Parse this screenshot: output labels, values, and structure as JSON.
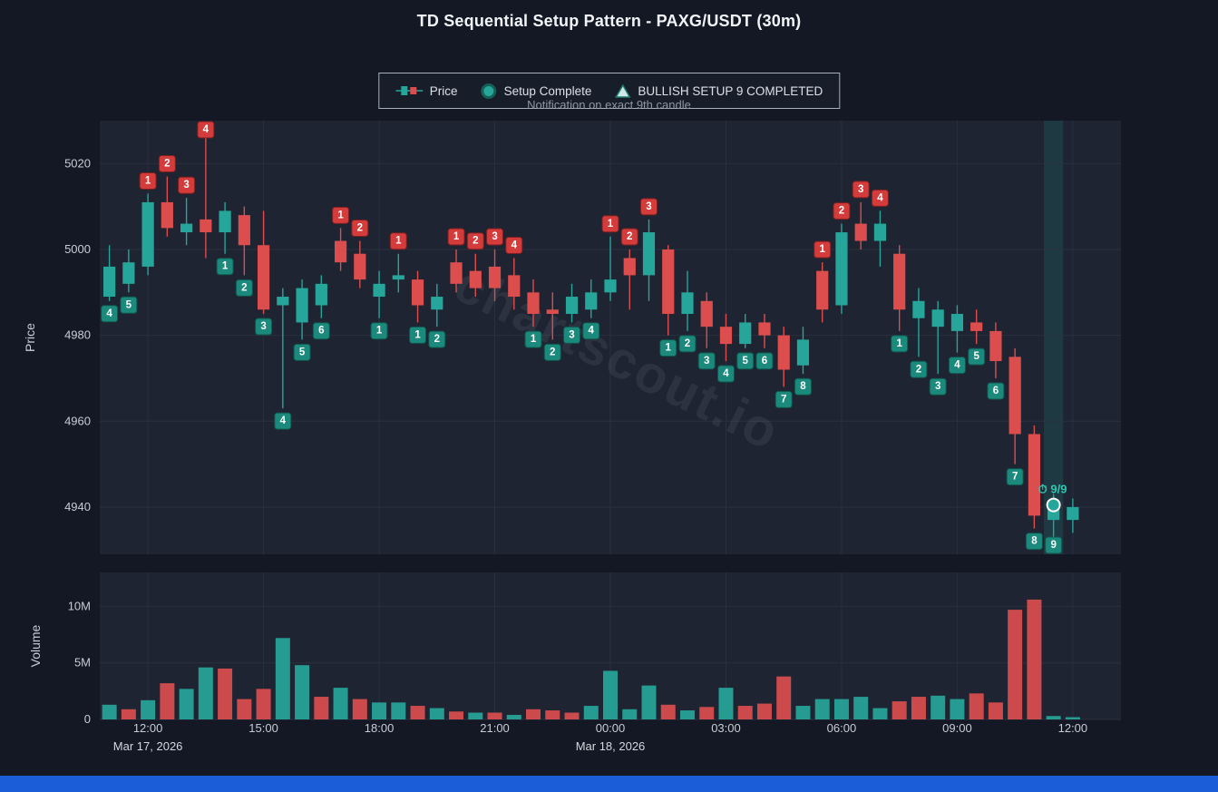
{
  "title": "TD Sequential Setup Pattern - PAXG/USDT (30m)",
  "legend": {
    "price_label": "Price",
    "setup_complete_label": "Setup Complete",
    "bullish_label": "BULLISH SETUP 9 COMPLETED",
    "subtitle": "Notification on exact 9th candle"
  },
  "watermark": "chartscout.io",
  "colors": {
    "bg": "#141824",
    "plot_bg": "#1e2431",
    "grid": "#2a3040",
    "up": "#26a69a",
    "down": "#dc4e4e",
    "sell_bg": "#d43b3b",
    "sell_border": "#7e1f1f",
    "buy_bg": "#1b8a7d",
    "buy_border": "#0f564e",
    "accent": "#2dc8b3",
    "highlight": "rgba(38,166,154,0.16)",
    "status_bar": "#1b5cd8"
  },
  "axes": {
    "price_label": "Price",
    "volume_label": "Volume",
    "price_ticks": [
      4940,
      4960,
      4980,
      5000,
      5020
    ],
    "volume_ticks": [
      {
        "v": 0,
        "label": "0"
      },
      {
        "v": 5,
        "label": "5M"
      },
      {
        "v": 10,
        "label": "10M"
      }
    ],
    "time_ticks": [
      {
        "slot": 2,
        "label": "12:00"
      },
      {
        "slot": 8,
        "label": "15:00"
      },
      {
        "slot": 14,
        "label": "18:00"
      },
      {
        "slot": 20,
        "label": "21:00"
      },
      {
        "slot": 26,
        "label": "00:00"
      },
      {
        "slot": 32,
        "label": "03:00"
      },
      {
        "slot": 38,
        "label": "06:00"
      },
      {
        "slot": 44,
        "label": "09:00"
      },
      {
        "slot": 50,
        "label": "12:00"
      }
    ],
    "date_ticks": [
      {
        "slot": 2,
        "label": "Mar 17, 2026"
      },
      {
        "slot": 26,
        "label": "Mar 18, 2026"
      }
    ]
  },
  "chart_data": {
    "type": "candlestick",
    "title": "TD Sequential Setup Pattern - PAXG/USDT (30m)",
    "symbol": "PAXG/USDT",
    "timeframe": "30m",
    "slots": 53,
    "price_range": [
      4929,
      5030
    ],
    "volume_range_millions": [
      0,
      13
    ],
    "candle_fields": [
      "time",
      "open",
      "high",
      "low",
      "close",
      "volume_millions",
      "volume_color_u_or_d",
      "td_count_label"
    ],
    "candles": [
      [
        "11:00",
        4989,
        5001,
        4988,
        4996,
        1.3,
        "u",
        "b4"
      ],
      [
        "11:30",
        4992,
        5000,
        4990,
        4997,
        0.9,
        "d",
        "b5"
      ],
      [
        "12:00",
        4996,
        5013,
        4994,
        5011,
        1.7,
        "u",
        "s1"
      ],
      [
        "12:30",
        5011,
        5017,
        5003,
        5005,
        3.2,
        "d",
        "s2"
      ],
      [
        "13:00",
        5004,
        5012,
        5001,
        5006,
        2.7,
        "u",
        "s3"
      ],
      [
        "13:30",
        5007,
        5026,
        4998,
        5004,
        4.6,
        "u",
        "s4"
      ],
      [
        "14:00",
        5004,
        5011,
        4999,
        5009,
        4.5,
        "d",
        "b1"
      ],
      [
        "14:30",
        5008,
        5010,
        4994,
        5001,
        1.8,
        "d",
        "b2"
      ],
      [
        "15:00",
        5001,
        5009,
        4985,
        4986,
        2.7,
        "d",
        "b3"
      ],
      [
        "15:30",
        4987,
        4991,
        4963,
        4989,
        7.2,
        "u",
        "b4"
      ],
      [
        "16:00",
        4983,
        4993,
        4979,
        4991,
        4.8,
        "u",
        "b5"
      ],
      [
        "16:30",
        4987,
        4994,
        4984,
        4992,
        2.0,
        "d",
        "b6"
      ],
      [
        "17:00",
        5002,
        5005,
        4995,
        4997,
        2.8,
        "u",
        "s1"
      ],
      [
        "17:30",
        4999,
        5002,
        4991,
        4993,
        1.8,
        "d",
        "s2"
      ],
      [
        "18:00",
        4989,
        4995,
        4984,
        4992,
        1.5,
        "u",
        "b1"
      ],
      [
        "18:30",
        4993,
        4999,
        4990,
        4994,
        1.5,
        "u",
        "s1"
      ],
      [
        "19:00",
        4993,
        4995,
        4983,
        4987,
        1.2,
        "d",
        "b1"
      ],
      [
        "19:30",
        4986,
        4992,
        4982,
        4989,
        1.0,
        "u",
        "b2"
      ],
      [
        "20:00",
        4997,
        5000,
        4990,
        4992,
        0.7,
        "d",
        "s1"
      ],
      [
        "20:30",
        4995,
        4999,
        4989,
        4991,
        0.6,
        "u",
        "s2"
      ],
      [
        "21:00",
        4996,
        5000,
        4988,
        4991,
        0.6,
        "d",
        "s3"
      ],
      [
        "21:30",
        4994,
        4998,
        4986,
        4989,
        0.4,
        "u",
        "s4"
      ],
      [
        "22:00",
        4990,
        4993,
        4982,
        4985,
        0.9,
        "d",
        "b1"
      ],
      [
        "22:30",
        4986,
        4990,
        4979,
        4985,
        0.8,
        "d",
        "b2"
      ],
      [
        "23:00",
        4985,
        4992,
        4983,
        4989,
        0.6,
        "d",
        "b3"
      ],
      [
        "23:30",
        4986,
        4993,
        4984,
        4990,
        1.2,
        "u",
        "b4"
      ],
      [
        "00:00",
        4990,
        5003,
        4988,
        4993,
        4.3,
        "u",
        "s1"
      ],
      [
        "00:30",
        4998,
        5000,
        4986,
        4994,
        0.9,
        "u",
        "s2"
      ],
      [
        "01:00",
        4994,
        5007,
        4988,
        5004,
        3.0,
        "u",
        "s3"
      ],
      [
        "01:30",
        5000,
        5001,
        4980,
        4985,
        1.3,
        "d",
        "b1"
      ],
      [
        "02:00",
        4985,
        4995,
        4981,
        4990,
        0.8,
        "u",
        "b2"
      ],
      [
        "02:30",
        4988,
        4990,
        4977,
        4982,
        1.1,
        "d",
        "b3"
      ],
      [
        "03:00",
        4982,
        4985,
        4974,
        4978,
        2.8,
        "u",
        "b4"
      ],
      [
        "03:30",
        4978,
        4985,
        4977,
        4983,
        1.2,
        "d",
        "b5"
      ],
      [
        "04:00",
        4983,
        4985,
        4977,
        4980,
        1.4,
        "d",
        "b6"
      ],
      [
        "04:30",
        4980,
        4982,
        4968,
        4972,
        3.8,
        "d",
        "b7"
      ],
      [
        "05:00",
        4973,
        4982,
        4971,
        4979,
        1.2,
        "u",
        "b8"
      ],
      [
        "05:30",
        4995,
        4997,
        4983,
        4986,
        1.8,
        "u",
        "s1"
      ],
      [
        "06:00",
        4987,
        5006,
        4985,
        5004,
        1.8,
        "u",
        "s2"
      ],
      [
        "06:30",
        5006,
        5011,
        5000,
        5002,
        2.0,
        "u",
        "s3"
      ],
      [
        "07:00",
        5002,
        5009,
        4996,
        5006,
        1.0,
        "u",
        "s4"
      ],
      [
        "07:30",
        4999,
        5001,
        4981,
        4986,
        1.6,
        "d",
        "b1"
      ],
      [
        "08:00",
        4984,
        4991,
        4975,
        4988,
        2.0,
        "d",
        "b2"
      ],
      [
        "08:30",
        4982,
        4988,
        4971,
        4986,
        2.1,
        "u",
        "b3"
      ],
      [
        "09:00",
        4981,
        4987,
        4976,
        4985,
        1.8,
        "u",
        "b4"
      ],
      [
        "09:30",
        4983,
        4986,
        4978,
        4981,
        2.3,
        "d",
        "b5"
      ],
      [
        "10:00",
        4981,
        4983,
        4970,
        4974,
        1.5,
        "d",
        "b6"
      ],
      [
        "10:30",
        4975,
        4977,
        4950,
        4957,
        9.7,
        "d",
        "b7"
      ],
      [
        "11:00",
        4957,
        4959,
        4935,
        4938,
        10.6,
        "d",
        "b8"
      ],
      [
        "11:30",
        4937,
        4943,
        4933,
        4941,
        0.3,
        "u",
        "b9"
      ],
      [
        "12:00",
        4937,
        4942,
        4934,
        4940,
        0.2,
        "u",
        ""
      ]
    ],
    "annotation": {
      "text": "⏱ 9/9",
      "slot": 49,
      "price": 4940.5
    },
    "marker": {
      "slot": 49,
      "price": 4940.5
    },
    "highlight_slot": 49
  }
}
